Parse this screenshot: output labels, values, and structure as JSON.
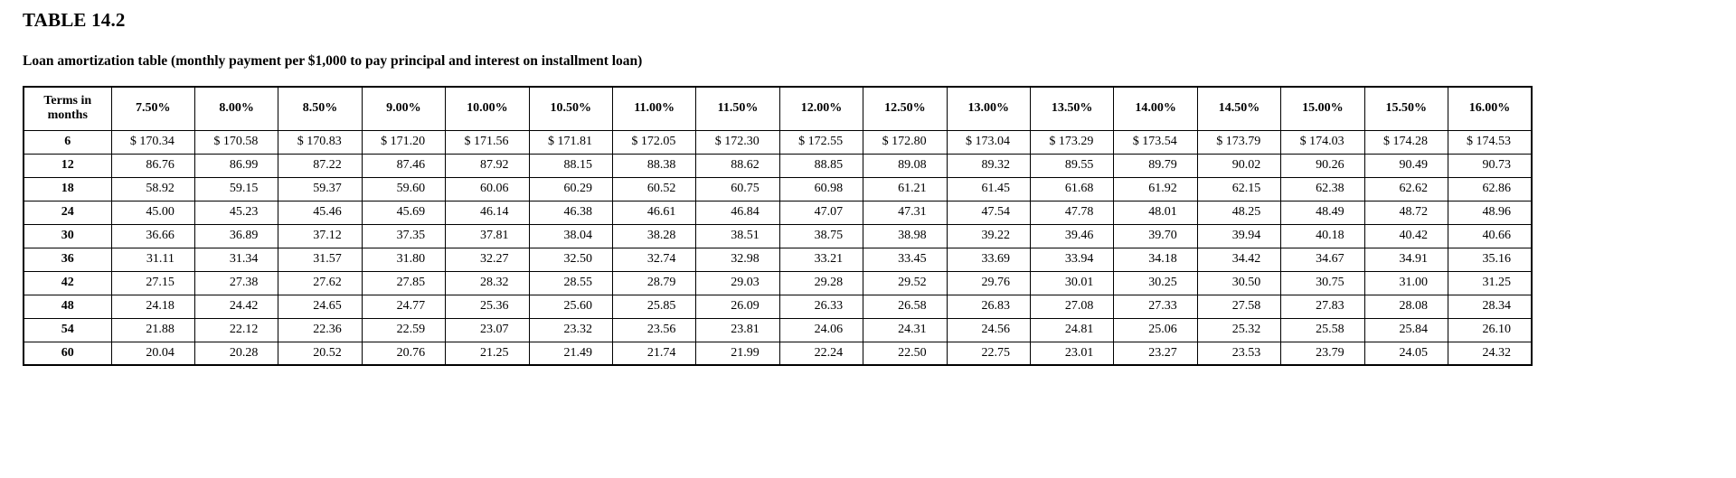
{
  "page": {
    "title": "TABLE 14.2",
    "subtitle": "Loan amortization table (monthly payment per $1,000 to pay principal and interest on installment loan)"
  },
  "chart_data": {
    "type": "table",
    "title": "TABLE 14.2",
    "subtitle": "Loan amortization table (monthly payment per $1,000 to pay principal and interest on installment loan)",
    "corner_header": "Terms in months",
    "columns": [
      "7.50%",
      "8.00%",
      "8.50%",
      "9.00%",
      "10.00%",
      "10.50%",
      "11.00%",
      "11.50%",
      "12.00%",
      "12.50%",
      "13.00%",
      "13.50%",
      "14.00%",
      "14.50%",
      "15.00%",
      "15.50%",
      "16.00%"
    ],
    "rows": [
      {
        "term": "6",
        "values": [
          "$ 170.34",
          "$ 170.58",
          "$ 170.83",
          "$ 171.20",
          "$ 171.56",
          "$ 171.81",
          "$ 172.05",
          "$ 172.30",
          "$ 172.55",
          "$ 172.80",
          "$ 173.04",
          "$ 173.29",
          "$ 173.54",
          "$ 173.79",
          "$ 174.03",
          "$ 174.28",
          "$ 174.53"
        ]
      },
      {
        "term": "12",
        "values": [
          "86.76",
          "86.99",
          "87.22",
          "87.46",
          "87.92",
          "88.15",
          "88.38",
          "88.62",
          "88.85",
          "89.08",
          "89.32",
          "89.55",
          "89.79",
          "90.02",
          "90.26",
          "90.49",
          "90.73"
        ]
      },
      {
        "term": "18",
        "values": [
          "58.92",
          "59.15",
          "59.37",
          "59.60",
          "60.06",
          "60.29",
          "60.52",
          "60.75",
          "60.98",
          "61.21",
          "61.45",
          "61.68",
          "61.92",
          "62.15",
          "62.38",
          "62.62",
          "62.86"
        ]
      },
      {
        "term": "24",
        "values": [
          "45.00",
          "45.23",
          "45.46",
          "45.69",
          "46.14",
          "46.38",
          "46.61",
          "46.84",
          "47.07",
          "47.31",
          "47.54",
          "47.78",
          "48.01",
          "48.25",
          "48.49",
          "48.72",
          "48.96"
        ]
      },
      {
        "term": "30",
        "values": [
          "36.66",
          "36.89",
          "37.12",
          "37.35",
          "37.81",
          "38.04",
          "38.28",
          "38.51",
          "38.75",
          "38.98",
          "39.22",
          "39.46",
          "39.70",
          "39.94",
          "40.18",
          "40.42",
          "40.66"
        ]
      },
      {
        "term": "36",
        "values": [
          "31.11",
          "31.34",
          "31.57",
          "31.80",
          "32.27",
          "32.50",
          "32.74",
          "32.98",
          "33.21",
          "33.45",
          "33.69",
          "33.94",
          "34.18",
          "34.42",
          "34.67",
          "34.91",
          "35.16"
        ]
      },
      {
        "term": "42",
        "values": [
          "27.15",
          "27.38",
          "27.62",
          "27.85",
          "28.32",
          "28.55",
          "28.79",
          "29.03",
          "29.28",
          "29.52",
          "29.76",
          "30.01",
          "30.25",
          "30.50",
          "30.75",
          "31.00",
          "31.25"
        ]
      },
      {
        "term": "48",
        "values": [
          "24.18",
          "24.42",
          "24.65",
          "24.77",
          "25.36",
          "25.60",
          "25.85",
          "26.09",
          "26.33",
          "26.58",
          "26.83",
          "27.08",
          "27.33",
          "27.58",
          "27.83",
          "28.08",
          "28.34"
        ]
      },
      {
        "term": "54",
        "values": [
          "21.88",
          "22.12",
          "22.36",
          "22.59",
          "23.07",
          "23.32",
          "23.56",
          "23.81",
          "24.06",
          "24.31",
          "24.56",
          "24.81",
          "25.06",
          "25.32",
          "25.58",
          "25.84",
          "26.10"
        ]
      },
      {
        "term": "60",
        "values": [
          "20.04",
          "20.28",
          "20.52",
          "20.76",
          "21.25",
          "21.49",
          "21.74",
          "21.99",
          "22.24",
          "22.50",
          "22.75",
          "23.01",
          "23.27",
          "23.53",
          "23.79",
          "24.05",
          "24.32"
        ]
      }
    ]
  }
}
